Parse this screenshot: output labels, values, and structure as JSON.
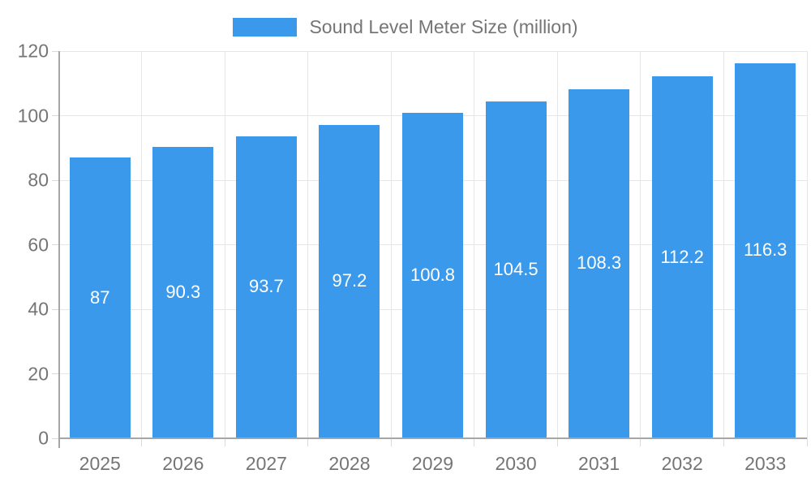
{
  "chart_data": {
    "type": "bar",
    "title": "Sound Level Meter Size (million)",
    "legend": {
      "label": "Sound Level Meter Size (million)",
      "position": "top"
    },
    "categories": [
      "2025",
      "2026",
      "2027",
      "2028",
      "2029",
      "2030",
      "2031",
      "2032",
      "2033"
    ],
    "series": [
      {
        "name": "Sound Level Meter Size (million)",
        "values": [
          87,
          90.3,
          93.7,
          97.2,
          100.8,
          104.5,
          108.3,
          112.2,
          116.3
        ],
        "value_labels": [
          "87",
          "90.3",
          "93.7",
          "97.2",
          "100.8",
          "104.5",
          "108.3",
          "112.2",
          "116.3"
        ]
      }
    ],
    "xlabel": "",
    "ylabel": "",
    "ylim": [
      0,
      120
    ],
    "yticks": [
      0,
      20,
      40,
      60,
      80,
      100,
      120
    ],
    "grid": true,
    "colors": {
      "bar": "#3b99ec",
      "axis_text": "#757575",
      "gridline": "#e6e6e6",
      "axis_line": "#a6a6a6",
      "tick": "#dadada",
      "bar_label_text": "#ffffff",
      "background": "#ffffff"
    }
  }
}
